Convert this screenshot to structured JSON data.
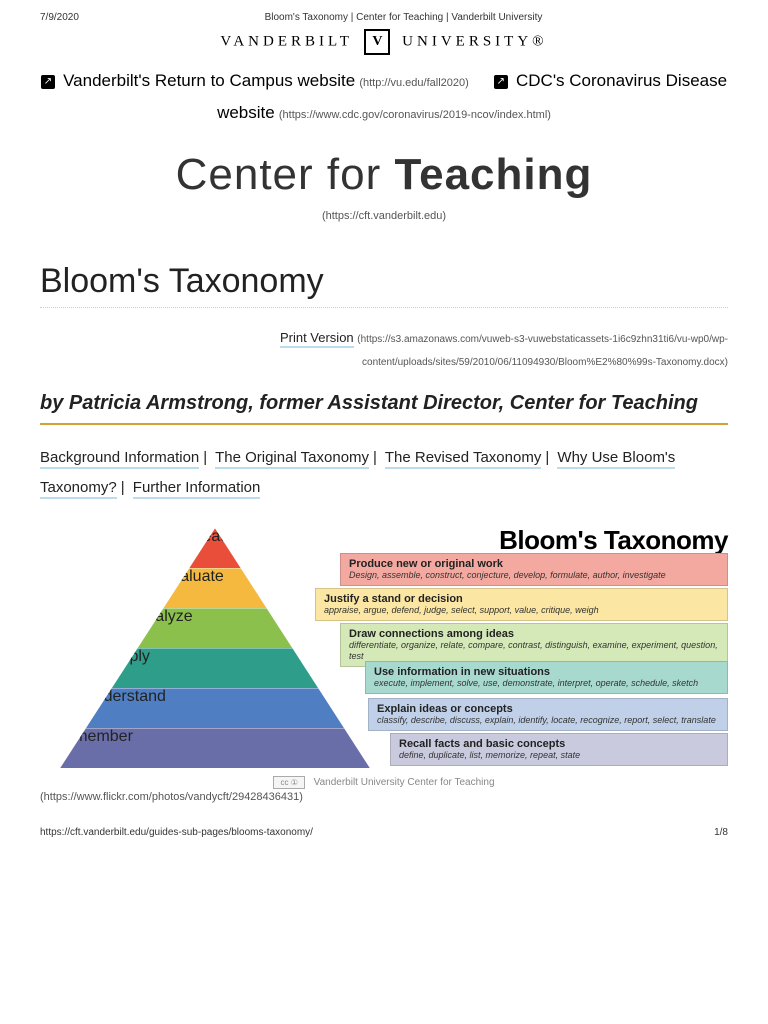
{
  "meta": {
    "date": "7/9/2020",
    "tab_title": "Bloom's Taxonomy | Center for Teaching | Vanderbilt University",
    "footer_url": "https://cft.vanderbilt.edu/guides-sub-pages/blooms-taxonomy/",
    "page_num": "1/8"
  },
  "logo": {
    "left": "VANDERBILT",
    "monogram": "V",
    "right": "UNIVERSITY®"
  },
  "alerts": {
    "link1_text": "Vanderbilt's Return to Campus website",
    "link1_url": "(http://vu.edu/fall2020)",
    "link2_text": "CDC's Coronavirus Disease website",
    "link2_url": "(https://www.cdc.gov/coronavirus/2019-ncov/index.html)"
  },
  "center_title": {
    "light": "Center for ",
    "bold": "Teaching"
  },
  "cft_url": "(https://cft.vanderbilt.edu)",
  "article_title": "Bloom's Taxonomy",
  "print": {
    "label": "Print Version",
    "url": "(https://s3.amazonaws.com/vuweb-s3-vuwebstaticassets-1i6c9zhn31ti6/vu-wp0/wp-content/uploads/sites/59/2010/06/11094930/Bloom%E2%80%99s-Taxonomy.docx)"
  },
  "byline": "by Patricia Armstrong, former Assistant Director, Center for Teaching",
  "toc": {
    "items": [
      "Background Information",
      "The Original Taxonomy",
      "The Revised Taxonomy",
      "Why Use Bloom's Taxonomy?",
      "Further Information"
    ]
  },
  "bloom_heading": "Bloom's Taxonomy",
  "pyramid": [
    {
      "label": "create",
      "color": "#e94e3a",
      "desc_bg": "#f3a9a0",
      "desc_title": "Produce new or original work",
      "desc_sub": "Design, assemble, construct, conjecture, develop, formulate, author, investigate"
    },
    {
      "label": "evaluate",
      "color": "#f4b93e",
      "desc_bg": "#fbe6a3",
      "desc_title": "Justify a stand or decision",
      "desc_sub": "appraise, argue, defend, judge, select, support, value, critique, weigh"
    },
    {
      "label": "analyze",
      "color": "#8cc04d",
      "desc_bg": "#d4e8b8",
      "desc_title": "Draw connections among ideas",
      "desc_sub": "differentiate, organize, relate, compare, contrast, distinguish, examine, experiment, question, test"
    },
    {
      "label": "apply",
      "color": "#2e9e8a",
      "desc_bg": "#a7d9ce",
      "desc_title": "Use information in new situations",
      "desc_sub": "execute, implement, solve, use, demonstrate, interpret, operate, schedule, sketch"
    },
    {
      "label": "understand",
      "color": "#4f7fc2",
      "desc_bg": "#bfd0e8",
      "desc_title": "Explain ideas or concepts",
      "desc_sub": "classify, describe, discuss, explain, identify, locate, recognize, report, select, translate"
    },
    {
      "label": "remember",
      "color": "#6a6ea8",
      "desc_bg": "#c9cadd",
      "desc_title": "Recall facts and basic concepts",
      "desc_sub": "define, duplicate, list, memorize, repeat, state"
    }
  ],
  "cc": {
    "badge": "cc ①",
    "text": "Vanderbilt University Center for Teaching"
  },
  "flickr_url": "(https://www.flickr.com/photos/vandycft/29428436431)"
}
